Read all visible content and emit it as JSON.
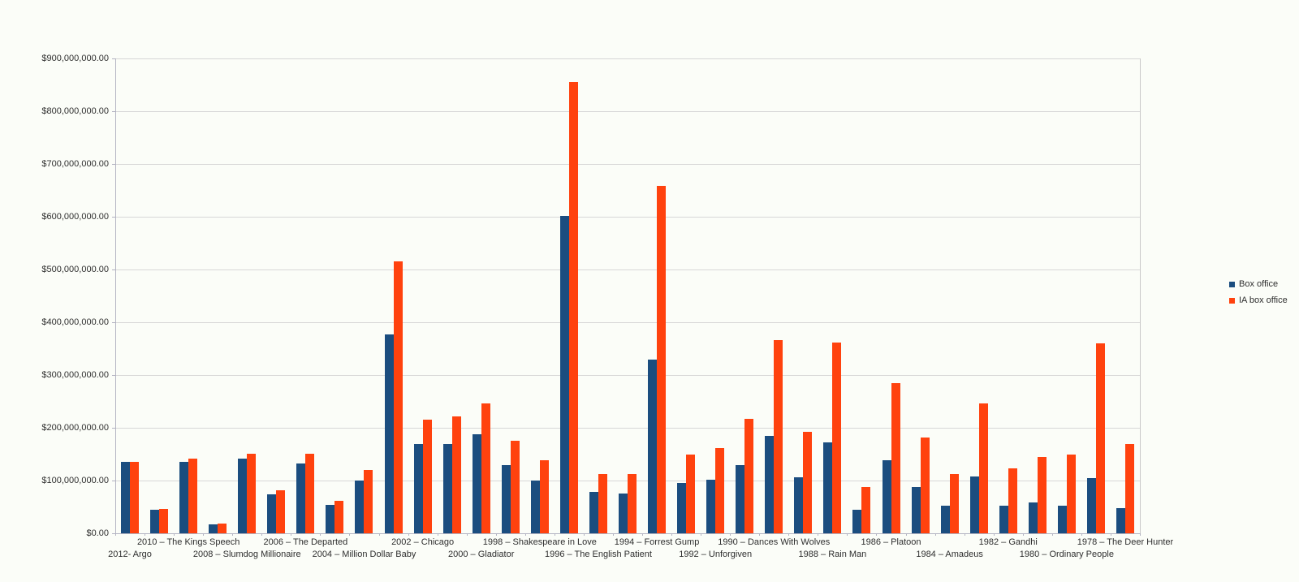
{
  "page": {
    "background_color": "#FBFDF8",
    "text_color": "#2e2e2e",
    "gridline_color": "#d7d7d7",
    "axis_color": "#b3b3c2"
  },
  "chart_data": {
    "type": "bar",
    "title": "",
    "xlabel": "",
    "ylabel": "",
    "currency_format": "$#,##0.00",
    "ylim_musd": [
      0,
      900
    ],
    "grid": "horizontal",
    "legend_position": "right",
    "y_tick_labels": [
      "$0.00",
      "$100,000,000.00",
      "$200,000,000.00",
      "$300,000,000.00",
      "$400,000,000.00",
      "$500,000,000.00",
      "$600,000,000.00",
      "$700,000,000.00",
      "$800,000,000.00",
      "$900,000,000.00"
    ],
    "categories": [
      "2012- Argo",
      "",
      "2010 – The Kings Speech",
      "",
      "2008 – Slumdog Millionaire",
      "",
      "2006 – The Departed",
      "",
      "2004 – Million Dollar Baby",
      "",
      "2002 – Chicago",
      "",
      "2000 – Gladiator",
      "",
      "1998 – Shakespeare in Love",
      "",
      "1996 – The English Patient",
      "",
      "1994 – Forrest Gump",
      "",
      "1992 – Unforgiven",
      "",
      "1990 – Dances With Wolves",
      "",
      "1988 – Rain Man",
      "",
      "1986 – Platoon",
      "",
      "1984 – Amadeus",
      "",
      "1982 – Gandhi",
      "",
      "1980 – Ordinary People",
      "",
      "1978 – The Deer Hunter"
    ],
    "x_label_rows_note": "labels alternate between an upper and a lower row; unlabeled categories are the odd years in between",
    "series": [
      {
        "name": "Box office",
        "color": "#1B4D7F",
        "values_musd": [
          136,
          45,
          135,
          17,
          141,
          74,
          132,
          54,
          100,
          377,
          170,
          170,
          187,
          130,
          100,
          601,
          78,
          75,
          330,
          96,
          101,
          130,
          184,
          106,
          172,
          44,
          138,
          87,
          52,
          108,
          52,
          58,
          52,
          105,
          48
        ]
      },
      {
        "name": "IA box office",
        "color": "#FF420E",
        "values_musd": [
          136,
          46,
          142,
          18,
          151,
          81,
          151,
          62,
          120,
          515,
          215,
          221,
          246,
          176,
          139,
          855,
          112,
          112,
          658,
          150,
          162,
          217,
          366,
          192,
          362,
          87,
          285,
          182,
          112,
          246,
          123,
          145,
          149,
          360,
          169
        ]
      }
    ]
  }
}
